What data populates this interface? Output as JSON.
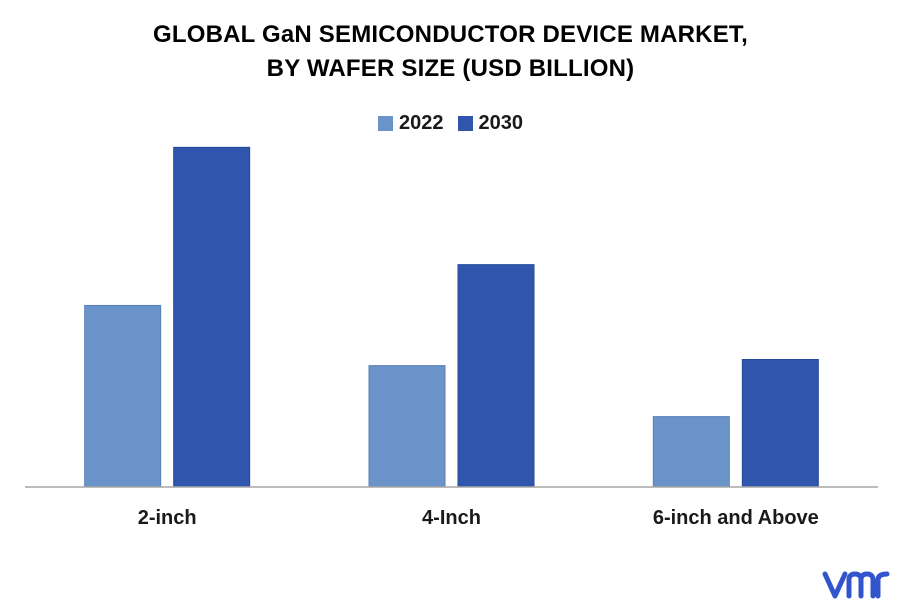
{
  "chart_data": {
    "type": "bar",
    "title": "GLOBAL GaN SEMICONDUCTOR DEVICE MARKET, BY WAFER SIZE (USD BILLION)",
    "title_lines": [
      "GLOBAL GaN SEMICONDUCTOR DEVICE MARKET,",
      "BY WAFER SIZE (USD BILLION)"
    ],
    "categories": [
      "2-inch",
      "4-Inch",
      "6-inch and Above"
    ],
    "series": [
      {
        "name": "2022",
        "color": "#6a93c9",
        "values": [
          1.78,
          1.19,
          0.69
        ]
      },
      {
        "name": "2030",
        "color": "#2f55ad",
        "values": [
          3.33,
          2.18,
          1.25
        ]
      }
    ],
    "xlabel": "",
    "ylabel": "",
    "ylim": [
      0,
      3.5
    ],
    "grid": false,
    "legend": "top-center"
  },
  "brand": {
    "logo_name": "vmr-logo",
    "color": "#3355cc"
  }
}
